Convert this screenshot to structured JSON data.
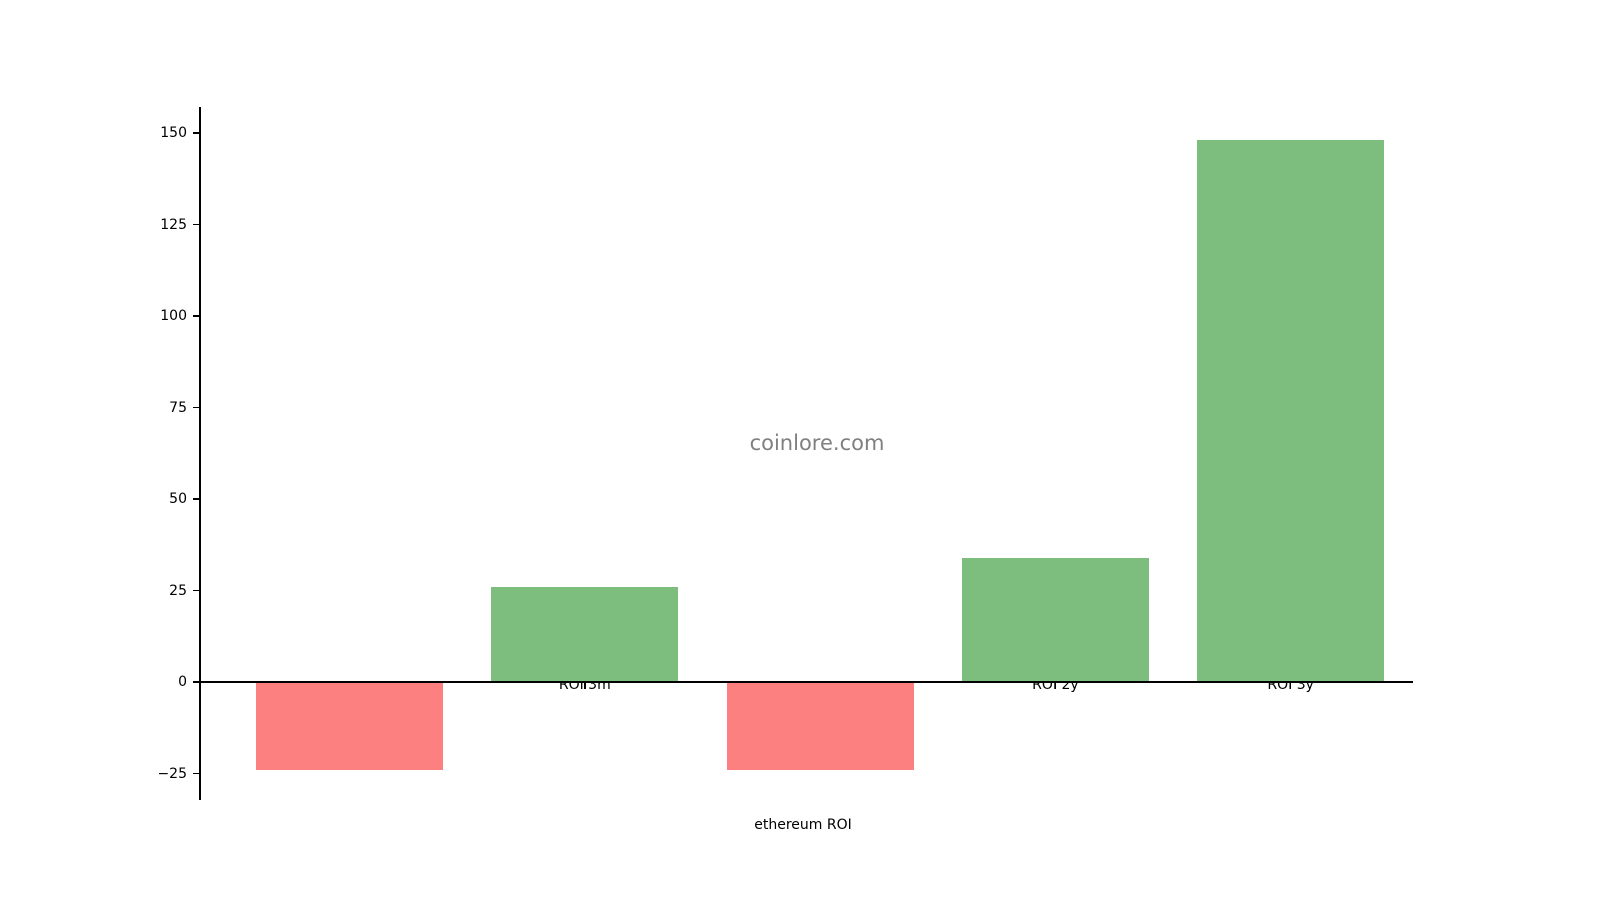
{
  "watermark": "coinlore.com",
  "chart_data": {
    "type": "bar",
    "title": "",
    "xlabel": "ethereum ROI",
    "ylabel": "",
    "categories": [
      "",
      "ROI 3m",
      "",
      "ROI 2y",
      "ROI 3y"
    ],
    "values": [
      -24,
      26,
      -24,
      34,
      148
    ],
    "yticks": [
      -25,
      0,
      25,
      50,
      75,
      100,
      125,
      150
    ],
    "ylim": [
      -32,
      157
    ],
    "grid": false,
    "legend": "none",
    "colors": {
      "positive_bar": "#7dbe7e",
      "negative_bar": "#fc8080",
      "axis": "#000000",
      "tick_text": "#000000",
      "watermark": "#808080"
    },
    "notes_visible_x_labels": [
      "ROI 3m",
      "ROI 2y",
      "ROI 3y"
    ]
  }
}
